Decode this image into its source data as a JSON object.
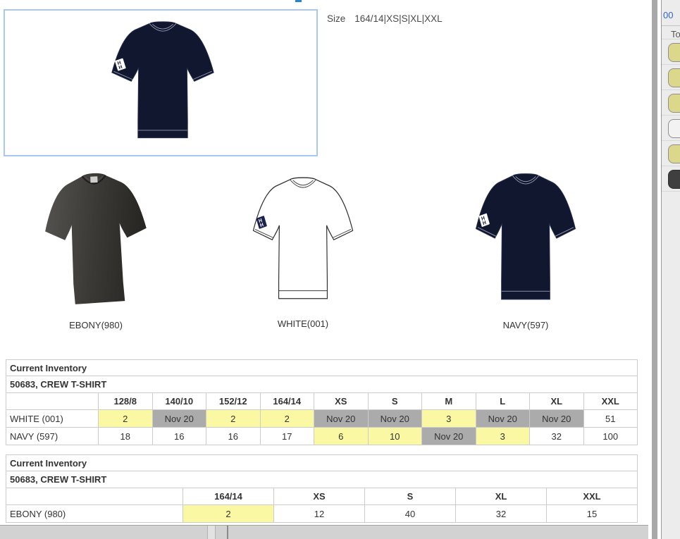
{
  "size_info": {
    "label": "Size",
    "value": "164/14|XS|S|XL|XXL"
  },
  "product_gallery": {
    "main_variant": "navy",
    "thumbnails": [
      {
        "label": "EBONY(980)",
        "variant": "ebony"
      },
      {
        "label": "WHITE(001)",
        "variant": "white"
      },
      {
        "label": "NAVY(597)",
        "variant": "navy"
      }
    ]
  },
  "inventory_tables": [
    {
      "title": "Current Inventory",
      "subtitle": "50683, CREW T-SHIRT",
      "columns": [
        "128/8",
        "140/10",
        "152/12",
        "164/14",
        "XS",
        "S",
        "M",
        "L",
        "XL",
        "XXL"
      ],
      "rows": [
        {
          "label": "WHITE (001)",
          "cells": [
            {
              "text": "2",
              "style": "yellow"
            },
            {
              "text": "Nov 20",
              "style": "gray"
            },
            {
              "text": "2",
              "style": "yellow"
            },
            {
              "text": "2",
              "style": "yellow"
            },
            {
              "text": "Nov 20",
              "style": "gray"
            },
            {
              "text": "Nov 20",
              "style": "gray"
            },
            {
              "text": "3",
              "style": "yellow"
            },
            {
              "text": "Nov 20",
              "style": "gray"
            },
            {
              "text": "Nov 20",
              "style": "gray"
            },
            {
              "text": "51",
              "style": "plain"
            }
          ]
        },
        {
          "label": "NAVY (597)",
          "cells": [
            {
              "text": "18",
              "style": "plain"
            },
            {
              "text": "16",
              "style": "plain"
            },
            {
              "text": "16",
              "style": "plain"
            },
            {
              "text": "17",
              "style": "plain"
            },
            {
              "text": "6",
              "style": "yellow"
            },
            {
              "text": "10",
              "style": "yellow"
            },
            {
              "text": "Nov 20",
              "style": "gray"
            },
            {
              "text": "3",
              "style": "yellow"
            },
            {
              "text": "32",
              "style": "plain"
            },
            {
              "text": "100",
              "style": "plain"
            }
          ]
        }
      ]
    },
    {
      "title": "Current Inventory",
      "subtitle": "50683, CREW T-SHIRT",
      "columns": [
        "164/14",
        "XS",
        "S",
        "XL",
        "XXL"
      ],
      "rows": [
        {
          "label": "EBONY (980)",
          "cells": [
            {
              "text": "2",
              "style": "yellow"
            },
            {
              "text": "12",
              "style": "plain"
            },
            {
              "text": "40",
              "style": "plain"
            },
            {
              "text": "32",
              "style": "plain"
            },
            {
              "text": "15",
              "style": "plain"
            }
          ]
        }
      ]
    }
  ],
  "right_panel": {
    "partial_value": "00",
    "partial_label": "To",
    "swatches": [
      "yellow",
      "yellow",
      "yellow",
      "white",
      "yellow",
      "dark"
    ]
  },
  "colors": {
    "accent_border": "#a9c7f3",
    "accent_blue": "#2586d0",
    "link_blue": "#3366cc",
    "cell_yellow": "#fbf8a3",
    "cell_gray": "#ababab",
    "swatch_yellow": "#dcd88b",
    "swatch_white": "#f2f2f2",
    "swatch_dark": "#3f3f3f"
  }
}
